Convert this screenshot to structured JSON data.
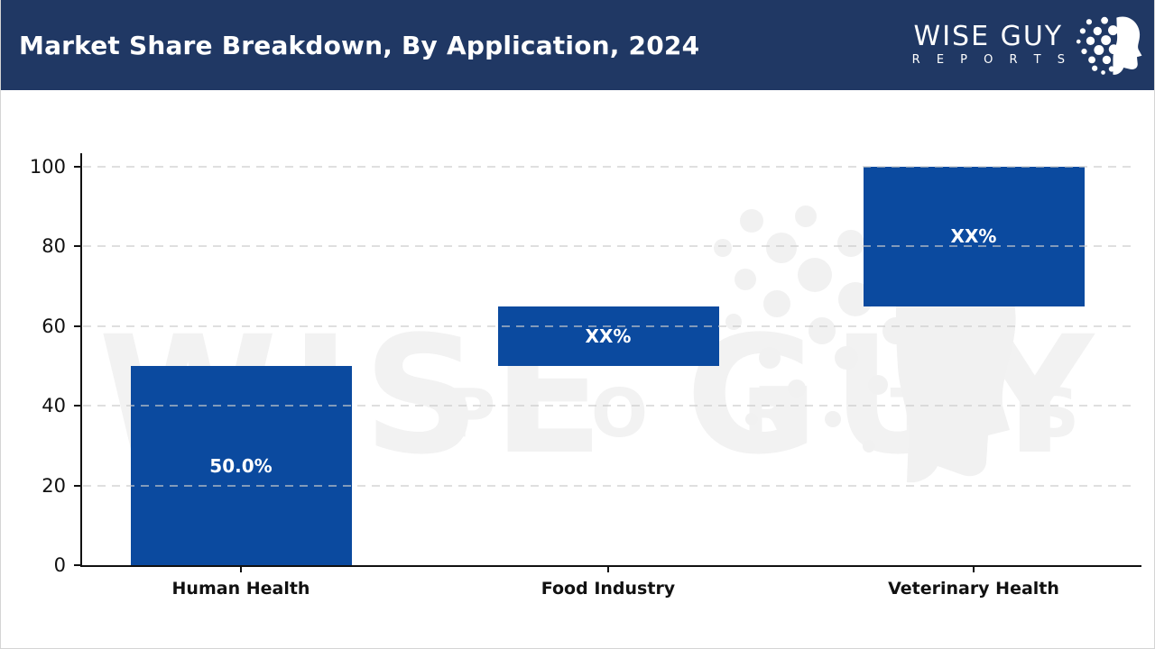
{
  "header": {
    "title": "Market Share Breakdown, By Application, 2024",
    "bg_color": "#203864",
    "logo": {
      "line1": "WISE GUY",
      "line2": "R E P O R T S"
    }
  },
  "watermark": {
    "line1": "WISE GUY",
    "line2": "R E P O R T S"
  },
  "chart_data": {
    "type": "bar",
    "subtype": "floating-segment-bars (stacked share breakdown)",
    "title": "Market Share Breakdown, By Application, 2024",
    "categories": [
      "Human Health",
      "Food Industry",
      "Veterinary Health"
    ],
    "bars": [
      {
        "category": "Human Health",
        "start": 0,
        "end": 50,
        "value": 50,
        "label": "50.0%"
      },
      {
        "category": "Food Industry",
        "start": 50,
        "end": 65,
        "value": 15,
        "label": "XX%"
      },
      {
        "category": "Veterinary Health",
        "start": 65,
        "end": 100,
        "value": 35,
        "label": "XX%"
      }
    ],
    "xlabel": "",
    "ylabel": "",
    "ylim": [
      0,
      100
    ],
    "yticks": [
      0,
      20,
      40,
      60,
      80,
      100
    ],
    "grid": "horizontal dashed",
    "legend": "none",
    "bar_color": "#0b4a9f",
    "bar_label_color": "#ffffff",
    "axis_color": "#111111",
    "gridline_color": "#cbcbcb"
  }
}
